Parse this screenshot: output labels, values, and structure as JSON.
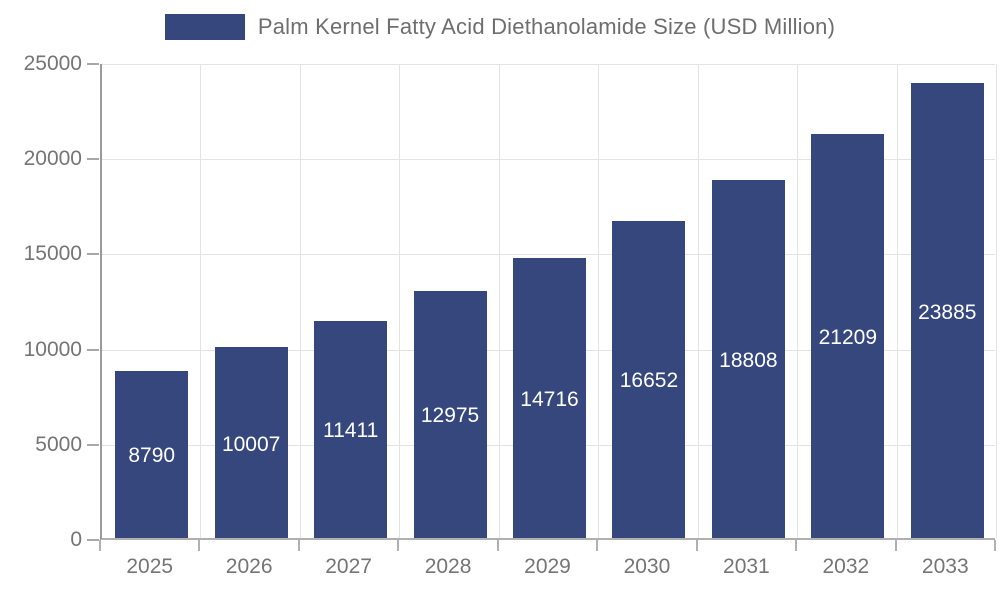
{
  "chart_data": {
    "type": "bar",
    "categories": [
      "2025",
      "2026",
      "2027",
      "2028",
      "2029",
      "2030",
      "2031",
      "2032",
      "2033"
    ],
    "series": [
      {
        "name": "Palm Kernel Fatty Acid Diethanolamide Size (USD Million)",
        "values": [
          8790,
          10007,
          11411,
          12975,
          14716,
          16652,
          18808,
          21209,
          23885
        ]
      }
    ],
    "title": "",
    "xlabel": "",
    "ylabel": "",
    "ylim": [
      0,
      25000
    ],
    "yticks": [
      0,
      5000,
      10000,
      15000,
      20000,
      25000
    ],
    "grid": true,
    "value_labels": "inside-center",
    "legend_position": "top-center",
    "colors": {
      "bar": "#36477e",
      "grid": "#e3e3e6",
      "axis": "#9a9a9a",
      "tick_label": "#757575",
      "value_label": "#ffffff",
      "legend_text": "#6e6e6e"
    }
  }
}
